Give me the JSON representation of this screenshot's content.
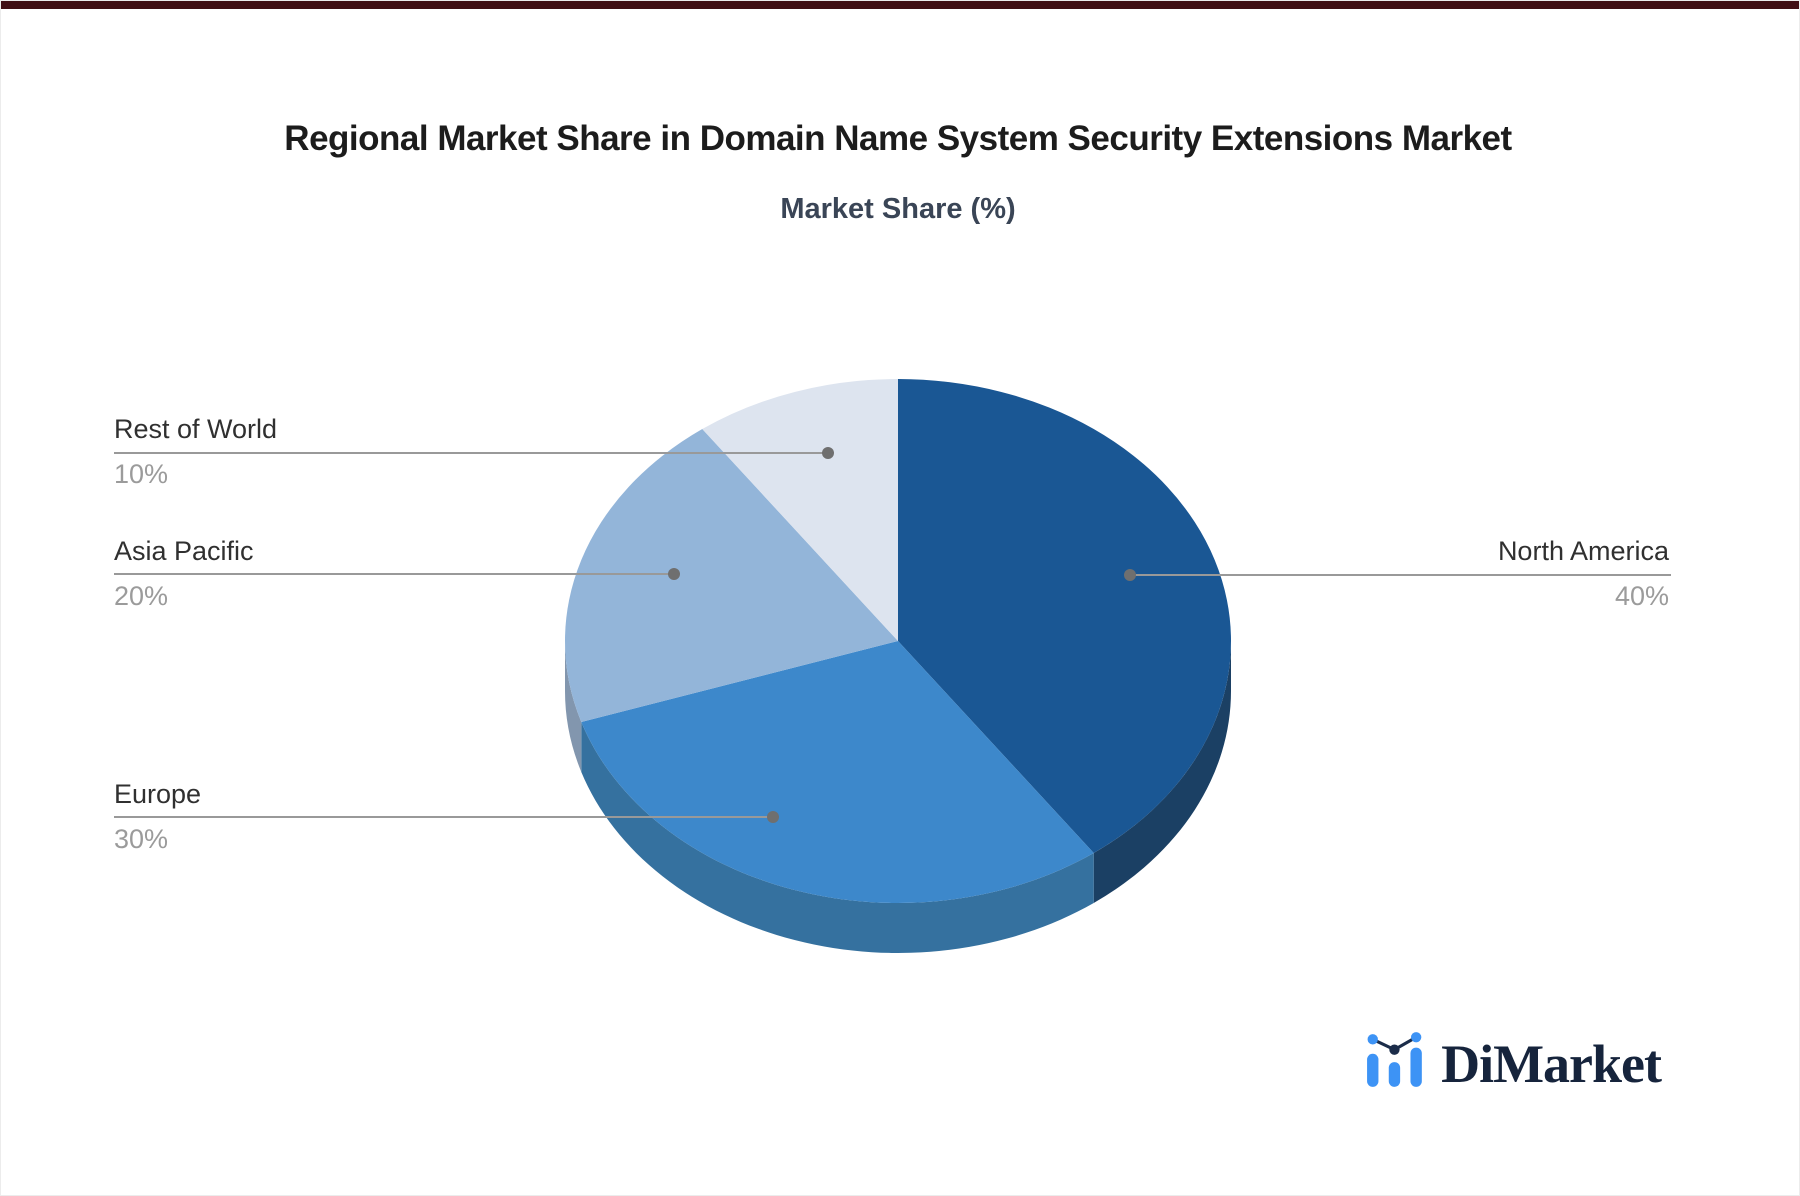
{
  "chart_data": {
    "type": "pie",
    "title": "Regional Market Share in Domain Name System Security Extensions Market",
    "subtitle": "Market Share (%)",
    "unit": "%",
    "effect": "3d",
    "label_style": "callout-leader-lines",
    "start_angle_deg": 0,
    "direction": "clockwise",
    "slices": [
      {
        "label": "North America",
        "value": 40,
        "display": "40%",
        "color": "#1A5794",
        "side_color": "#1B4064"
      },
      {
        "label": "Europe",
        "value": 30,
        "display": "30%",
        "color": "#3D88CB",
        "side_color": "#35719F"
      },
      {
        "label": "Asia Pacific",
        "value": 20,
        "display": "20%",
        "color": "#93B5D9",
        "side_color": "#8296AE"
      },
      {
        "label": "Rest of World",
        "value": 10,
        "display": "10%",
        "color": "#DDE4EF",
        "side_color": "#AEB9C9"
      }
    ]
  },
  "palette": {
    "title": "#1c1c1c",
    "subtitle": "#3a4556",
    "label": "#303030",
    "value": "#9b9b9b",
    "leader-line": "#999999",
    "leader-dot": "#6f6f6f",
    "logo-text": "#16243c"
  },
  "branding": {
    "logo_text": "DiMarket",
    "icon_bar_color": "#3D93F5",
    "icon_accent_color": "#1B2C49"
  }
}
